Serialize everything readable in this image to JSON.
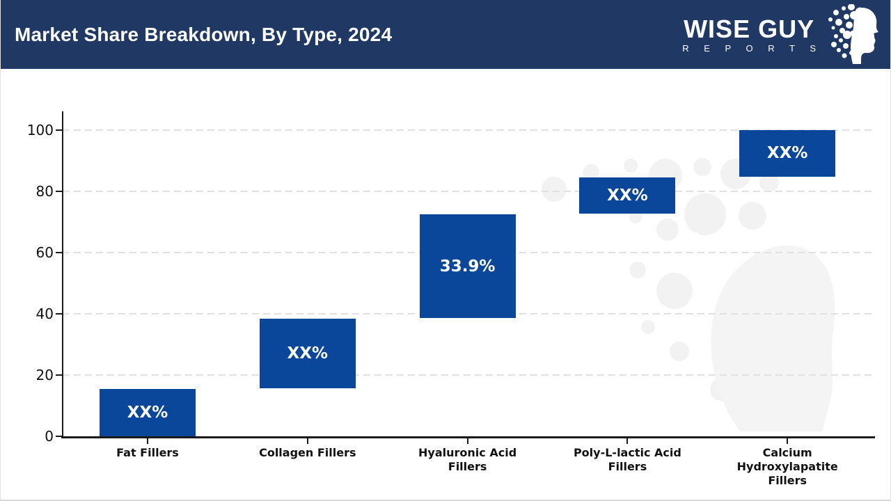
{
  "header": {
    "title": "Market Share Breakdown, By Type, 2024",
    "logo": {
      "line1": "WISE GUY",
      "line2": "R E P O R T S"
    }
  },
  "watermark": {
    "line1": "WISE GUY",
    "line2": "R E P O R T S"
  },
  "colors": {
    "header_bg": "#1f3864",
    "bar": "#0a4699",
    "bar_label": "#ffffff",
    "grid": "#e1e1e1",
    "axis": "#1a1a1a",
    "watermark": "#f3f3f3"
  },
  "chart_data": {
    "type": "bar",
    "subtype": "waterfall-floating-bars",
    "title": "Market Share Breakdown, By Type, 2024",
    "xlabel": "",
    "ylabel": "",
    "ylim": [
      0,
      105
    ],
    "yticks": [
      0,
      20,
      40,
      60,
      80,
      100
    ],
    "grid": "horizontal-dashed",
    "legend": "none",
    "categories": [
      "Fat Fillers",
      "Collagen Fillers",
      "Hyaluronic Acid\nFillers",
      "Poly-L-lactic Acid\nFillers",
      "Calcium\nHydroxylapatite\nFillers"
    ],
    "bars": [
      {
        "category": "Fat Fillers",
        "base": 0,
        "top": 15.5,
        "value_label": "XX%"
      },
      {
        "category": "Collagen Fillers",
        "base": 15.7,
        "top": 38.4,
        "value_label": "XX%"
      },
      {
        "category": "Hyaluronic Acid Fillers",
        "base": 38.6,
        "top": 72.5,
        "value_label": "33.9%"
      },
      {
        "category": "Poly-L-lactic Acid Fillers",
        "base": 72.7,
        "top": 84.6,
        "value_label": "XX%"
      },
      {
        "category": "Calcium Hydroxylapatite Fillers",
        "base": 84.8,
        "top": 100,
        "value_label": "XX%"
      }
    ]
  }
}
